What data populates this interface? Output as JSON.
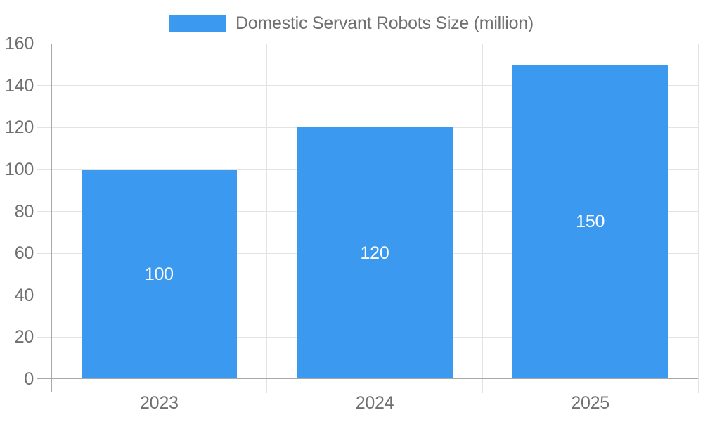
{
  "legend": {
    "label": "Domestic Servant Robots Size (million)"
  },
  "colors": {
    "bar": "#3B99F0",
    "grid": "#e3e3e3",
    "axis": "#a8a8a8",
    "text": "#6f6f6f",
    "data_label": "#ffffff",
    "background": "#ffffff"
  },
  "chart_data": {
    "type": "bar",
    "title": "",
    "categories": [
      "2023",
      "2024",
      "2025"
    ],
    "series": [
      {
        "name": "Domestic Servant Robots Size (million)",
        "color": "#3B99F0",
        "values": [
          100,
          120,
          150
        ]
      }
    ],
    "data_labels": [
      "100",
      "120",
      "150"
    ],
    "xlabel": "",
    "ylabel": "",
    "ylim": [
      0,
      160
    ],
    "ytick_step": 20,
    "yticks": [
      0,
      20,
      40,
      60,
      80,
      100,
      120,
      140,
      160
    ],
    "grid": true,
    "legend_position": "top"
  }
}
